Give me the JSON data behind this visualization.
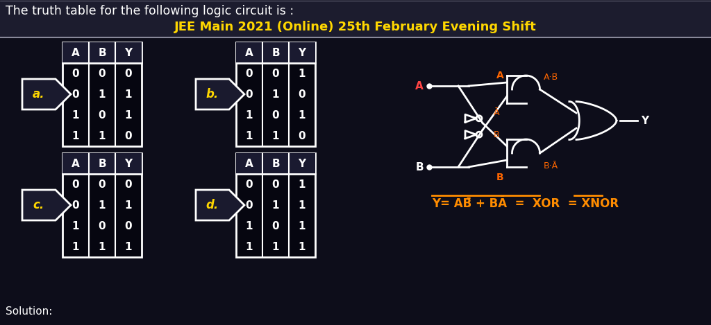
{
  "title_line1": "The truth table for the following logic circuit is :",
  "title_line2_text": "JEE Main 2021 (Online) 25th February Evening Shift",
  "bg_dark": "#0d0d1a",
  "bg_title": "#1c1c2e",
  "table_bg": "#0a0a14",
  "table_border": "#ffffff",
  "text_color": "#ffffff",
  "label_color": "#ffd700",
  "circuit_color": "#ff8c00",
  "table_a": {
    "label": "a.",
    "headers": [
      "A",
      "B",
      "Y"
    ],
    "rows": [
      [
        "0",
        "0",
        "0"
      ],
      [
        "0",
        "1",
        "1"
      ],
      [
        "1",
        "0",
        "1"
      ],
      [
        "1",
        "1",
        "0"
      ]
    ]
  },
  "table_b": {
    "label": "b.",
    "headers": [
      "A",
      "B",
      "Y"
    ],
    "rows": [
      [
        "0",
        "0",
        "1"
      ],
      [
        "0",
        "1",
        "0"
      ],
      [
        "1",
        "0",
        "1"
      ],
      [
        "1",
        "1",
        "0"
      ]
    ]
  },
  "table_c": {
    "label": "c.",
    "headers": [
      "A",
      "B",
      "Y"
    ],
    "rows": [
      [
        "0",
        "0",
        "0"
      ],
      [
        "0",
        "1",
        "1"
      ],
      [
        "1",
        "0",
        "0"
      ],
      [
        "1",
        "1",
        "1"
      ]
    ]
  },
  "table_d": {
    "label": "d.",
    "headers": [
      "A",
      "B",
      "Y"
    ],
    "rows": [
      [
        "0",
        "0",
        "1"
      ],
      [
        "0",
        "1",
        "1"
      ],
      [
        "1",
        "0",
        "1"
      ],
      [
        "1",
        "1",
        "1"
      ]
    ]
  }
}
